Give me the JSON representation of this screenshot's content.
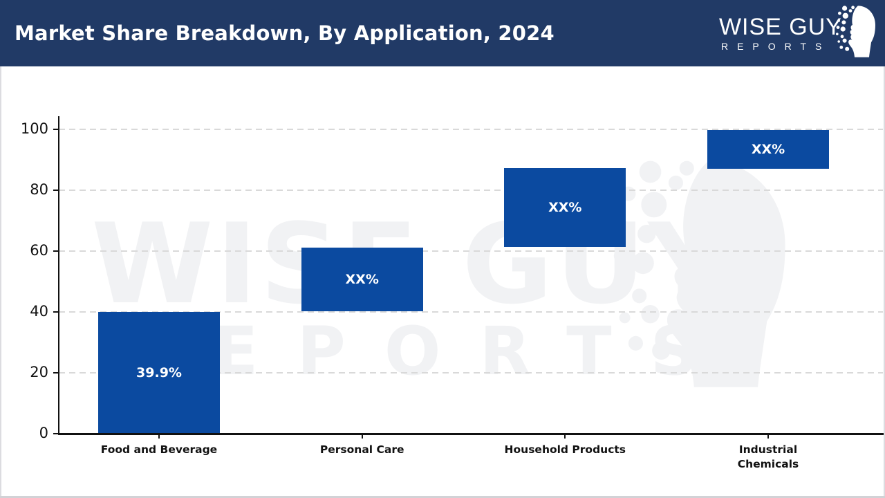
{
  "header": {
    "title": "Market Share Breakdown, By Application, 2024",
    "bg_color": "#213A66"
  },
  "brand": {
    "name": "WISE GUY",
    "subtitle": "REPORTS"
  },
  "watermark": {
    "line1": "WISE GUY",
    "line2": "REPORTS",
    "color": "#F1F2F4"
  },
  "chart_data": {
    "type": "bar",
    "subtype": "waterfall-stacked-segments",
    "title": "Market Share Breakdown, By Application, 2024",
    "categories": [
      "Food and Beverage",
      "Personal Care",
      "Household Products",
      "Industrial Chemicals"
    ],
    "segments": [
      {
        "category": "Food and Beverage",
        "start": 0,
        "end": 39.9,
        "label": "39.9%"
      },
      {
        "category": "Personal Care",
        "start": 40.3,
        "end": 61.2,
        "label": "XX%"
      },
      {
        "category": "Household Products",
        "start": 61.3,
        "end": 87.2,
        "label": "XX%"
      },
      {
        "category": "Industrial Chemicals",
        "start": 87.0,
        "end": 99.8,
        "label": "XX%"
      }
    ],
    "ylim": [
      0,
      100
    ],
    "yticks": [
      0,
      20,
      40,
      60,
      80,
      100
    ],
    "xlabel": "",
    "ylabel": "",
    "grid": "dashed-horizontal",
    "gridline_color": "#D9D9D9",
    "bar_color": "#0B4AA0",
    "bar_label_color": "#FFFFFF",
    "axis_color": "#111111",
    "legend": "none"
  }
}
